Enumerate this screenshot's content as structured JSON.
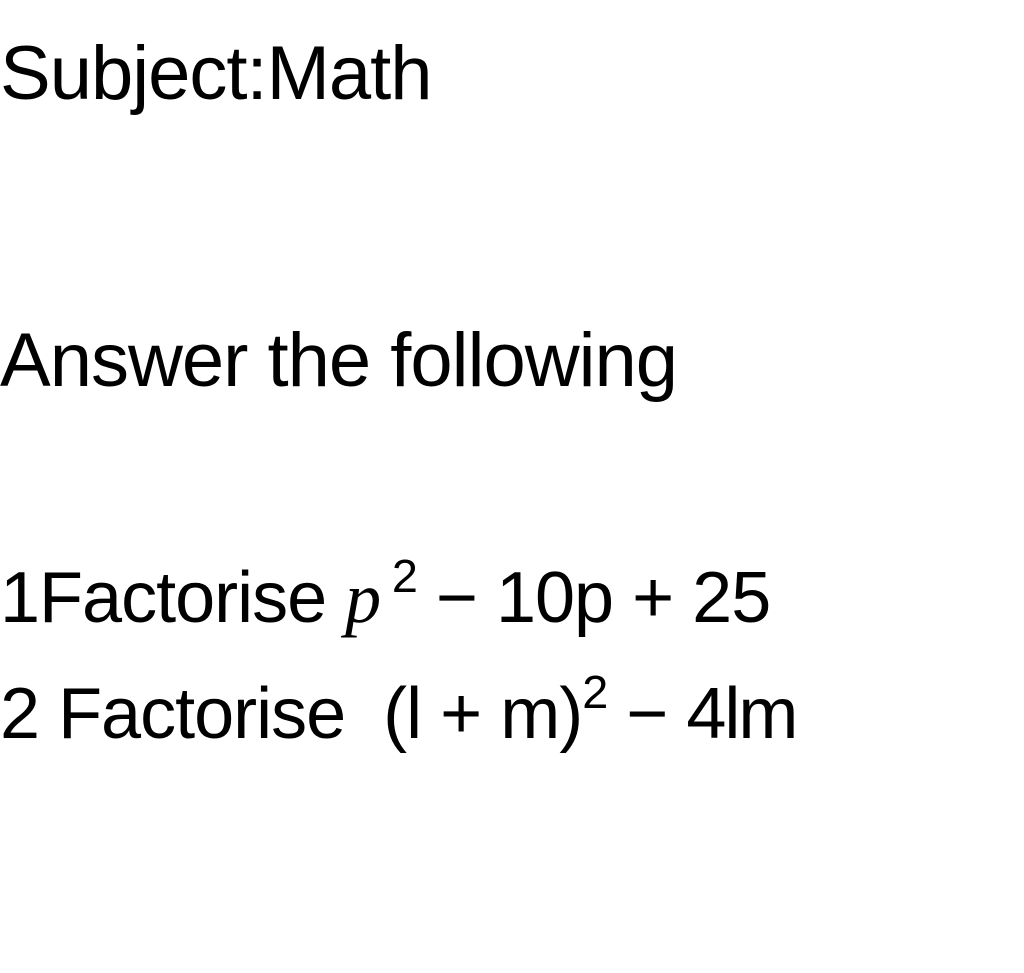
{
  "document": {
    "background_color": "#ffffff",
    "text_color": "#000000",
    "font_family": "Arial, Helvetica, sans-serif",
    "heading_fontsize": 76,
    "body_fontsize": 72
  },
  "header": {
    "subject_label": "Subject:",
    "subject_value": "Math"
  },
  "instruction": {
    "text": "Answer the following"
  },
  "problems": [
    {
      "number": "1",
      "verb": "Factorise",
      "var1": "p",
      "exp1": "2",
      "op1": "−",
      "coef1": "10",
      "var1b": "p",
      "op2": "+",
      "const1": "25"
    },
    {
      "number": "2",
      "verb": "Factorise",
      "lparen": "(",
      "var2a": "l",
      "plus_inner": "+",
      "var2b": "m",
      "rparen": ")",
      "exp2": "2",
      "op3": "−",
      "coef2": "4",
      "var2c": "l",
      "var2d": "m"
    }
  ]
}
